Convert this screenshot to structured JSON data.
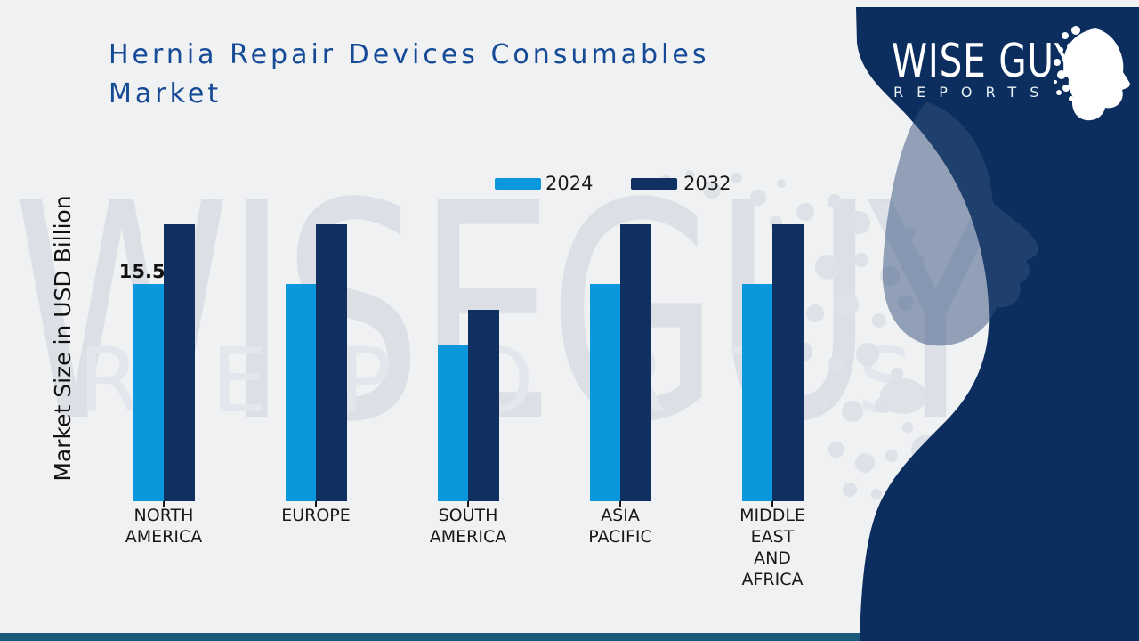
{
  "page": {
    "bg": "#f0f1f2",
    "footer_bar_color": "#1a5b7b",
    "panel_color": "#0b2e5e"
  },
  "title": {
    "text": "Hernia Repair Devices Consumables Market",
    "line1": "Hernia Repair Devices Consumables",
    "line2": "Market",
    "color": "#154a96"
  },
  "logo": {
    "brand_top": "WISE GUY",
    "brand_bottom": "REPORTS",
    "face_icon": "face-profile-dots",
    "panel_color": "#0b2e5e"
  },
  "watermark": {
    "big_text": "WISEGUY",
    "sub_text": "REPORTS"
  },
  "ylabel": "Market Size in USD Billion",
  "legend": {
    "items": [
      {
        "label": "2024",
        "color": "#0b97dc"
      },
      {
        "label": "2032",
        "color": "#0f3060"
      }
    ]
  },
  "chart_data": {
    "type": "bar",
    "title": "Hernia Repair Devices Consumables Market",
    "ylabel": "Market Size in USD Billion",
    "unit": "USD Billion",
    "categories": [
      "NORTH AMERICA",
      "EUROPE",
      "SOUTH AMERICA",
      "ASIA PACIFIC",
      "MIDDLE EAST AND AFRICA"
    ],
    "categories_lines": [
      [
        "NORTH",
        "AMERICA"
      ],
      [
        "EUROPE"
      ],
      [
        "SOUTH",
        "AMERICA"
      ],
      [
        "ASIA",
        "PACIFIC"
      ],
      [
        "MIDDLE",
        "EAST",
        "AND",
        "AFRICA"
      ]
    ],
    "series": [
      {
        "name": "2024",
        "color": "#0b97dc",
        "values": [
          15.52,
          15.5,
          11.2,
          15.5,
          15.5
        ]
      },
      {
        "name": "2032",
        "color": "#0f3060",
        "values": [
          19.8,
          19.8,
          13.7,
          19.8,
          19.8
        ]
      }
    ],
    "data_labels": [
      {
        "category": "NORTH AMERICA",
        "series": "2024",
        "text": "15.52"
      }
    ],
    "ylim": [
      0,
      22
    ],
    "gridlines": false,
    "legend_position": "top"
  }
}
